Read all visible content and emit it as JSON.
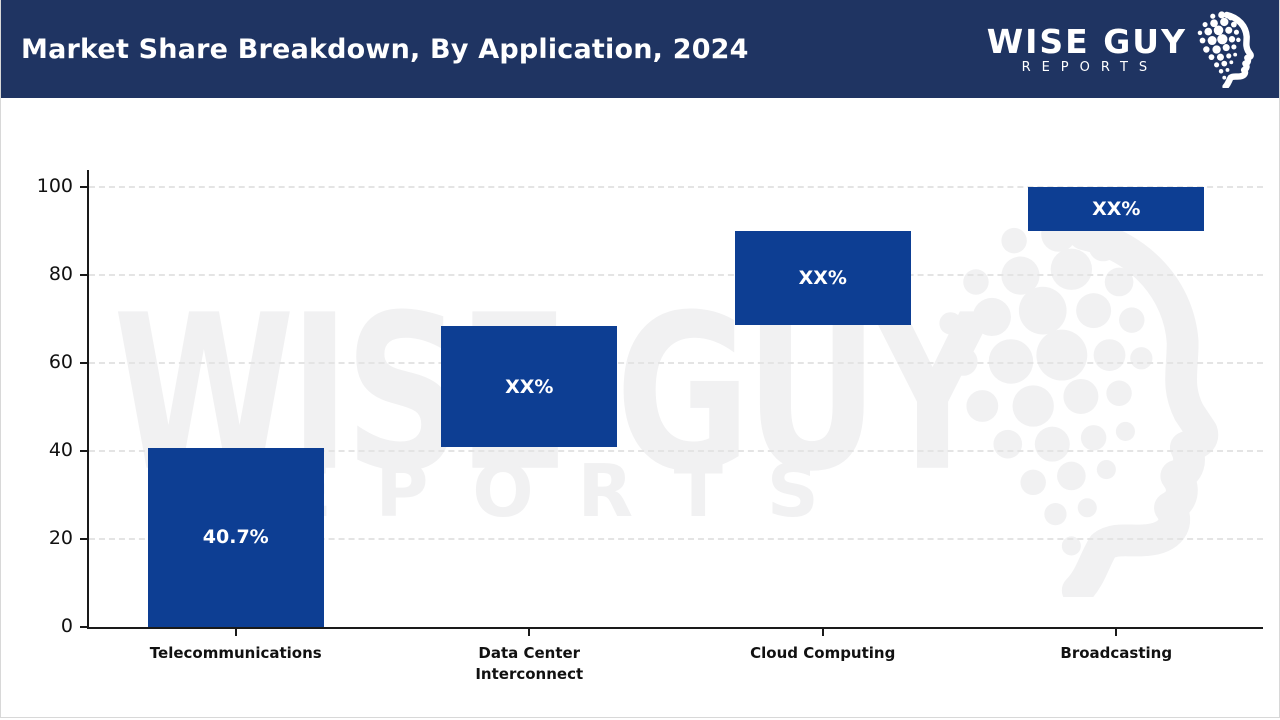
{
  "header": {
    "title": "Market Share Breakdown, By Application, 2024",
    "bg_color": "#1f3462",
    "logo": {
      "line1": "WISE GUY",
      "line2": "REPORTS"
    }
  },
  "watermark": {
    "line1": "WISE GUY",
    "line2": "REPORTS"
  },
  "chart_data": {
    "type": "bar",
    "subtype": "waterfall",
    "title": "Market Share Breakdown, By Application, 2024",
    "categories": [
      "Telecommunications",
      "Data Center\nInterconnect",
      "Cloud Computing",
      "Broadcasting"
    ],
    "segments": [
      {
        "category": "Telecommunications",
        "start": 0,
        "end": 40.7,
        "label": "40.7%"
      },
      {
        "category": "Data Center Interconnect",
        "start": 40.9,
        "end": 68.4,
        "label": "XX%"
      },
      {
        "category": "Cloud Computing",
        "start": 68.6,
        "end": 90.0,
        "label": "XX%"
      },
      {
        "category": "Broadcasting",
        "start": 90.0,
        "end": 100.0,
        "label": "XX%"
      }
    ],
    "yticks": [
      0,
      20,
      40,
      60,
      80,
      100
    ],
    "ylim": [
      0,
      104
    ],
    "xlabel": "",
    "ylabel": "",
    "legend": "none",
    "grid": "horizontal-dashed",
    "bar_color": "#0d3e93",
    "bar_label_color": "#ffffff",
    "grid_color": "#e4e4e4",
    "axis_color": "#1a1a1a"
  }
}
